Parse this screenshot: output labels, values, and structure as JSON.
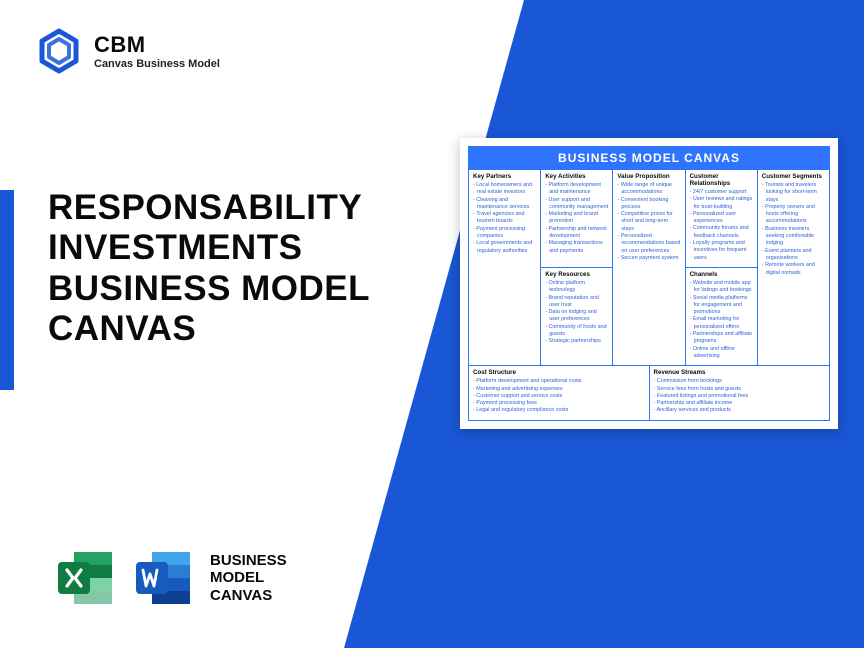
{
  "brand": {
    "abbr": "CBM",
    "subtitle": "Canvas Business Model"
  },
  "main_title": "RESPONSABILITY INVESTMENTS BUSINESS MODEL CANVAS",
  "footer_label": "BUSINESS\nMODEL\nCANVAS",
  "colors": {
    "brand_blue": "#1a57d6",
    "canvas_blue": "#2f74ff",
    "text_blue": "#2f63d6",
    "excel_green_d": "#107c41",
    "excel_green_l": "#21a366",
    "word_blue_d": "#185abd",
    "word_blue_l": "#41a5ee"
  },
  "canvas": {
    "title": "BUSINESS MODEL CANVAS",
    "blocks": {
      "key_partners": {
        "heading": "Key Partners",
        "items": [
          "Local homeowners and real estate investors",
          "Cleaning and maintenance services",
          "Travel agencies and tourism boards",
          "Payment processing companies",
          "Local governments and regulatory authorities"
        ]
      },
      "key_activities": {
        "heading": "Key Activities",
        "items": [
          "Platform development and maintenance",
          "User support and community management",
          "Marketing and brand promotion",
          "Partnership and network development",
          "Managing transactions and payments"
        ]
      },
      "key_resources": {
        "heading": "Key Resources",
        "items": [
          "Online platform technology",
          "Brand reputation and user trust",
          "Data on lodging and user preferences",
          "Community of hosts and guests",
          "Strategic partnerships"
        ]
      },
      "value_proposition": {
        "heading": "Value Proposition",
        "items": [
          "Wide range of unique accommodations",
          "Convenient booking process",
          "Competitive prices for short and long-term stays",
          "Personalized recommendations based on user preferences",
          "Secure payment system"
        ]
      },
      "customer_relationships": {
        "heading": "Customer Relationships",
        "items": [
          "24/7 customer support",
          "User reviews and ratings for trust-building",
          "Personalized user experiences",
          "Community forums and feedback channels",
          "Loyalty programs and incentives for frequent users"
        ]
      },
      "channels": {
        "heading": "Channels",
        "items": [
          "Website and mobile app for listings and bookings",
          "Social media platforms for engagement and promotions",
          "Email marketing for personalized offers",
          "Partnerships and affiliate programs",
          "Online and offline advertising"
        ]
      },
      "customer_segments": {
        "heading": "Customer Segments",
        "items": [
          "Tourists and travelers looking for short-term stays",
          "Property owners and hosts offering accommodations",
          "Business travelers seeking comfortable lodging",
          "Event planners and organizations",
          "Remote workers and digital nomads"
        ]
      },
      "cost_structure": {
        "heading": "Cost Structure",
        "items": [
          "Platform development and operational costs",
          "Marketing and advertising expenses",
          "Customer support and service costs",
          "Payment processing fees",
          "Legal and regulatory compliance costs"
        ]
      },
      "revenue_streams": {
        "heading": "Revenue Streams",
        "items": [
          "Commission from bookings",
          "Service fees from hosts and guests",
          "Featured listings and promotional fees",
          "Partnership and affiliate income",
          "Ancillary services and products"
        ]
      }
    }
  }
}
